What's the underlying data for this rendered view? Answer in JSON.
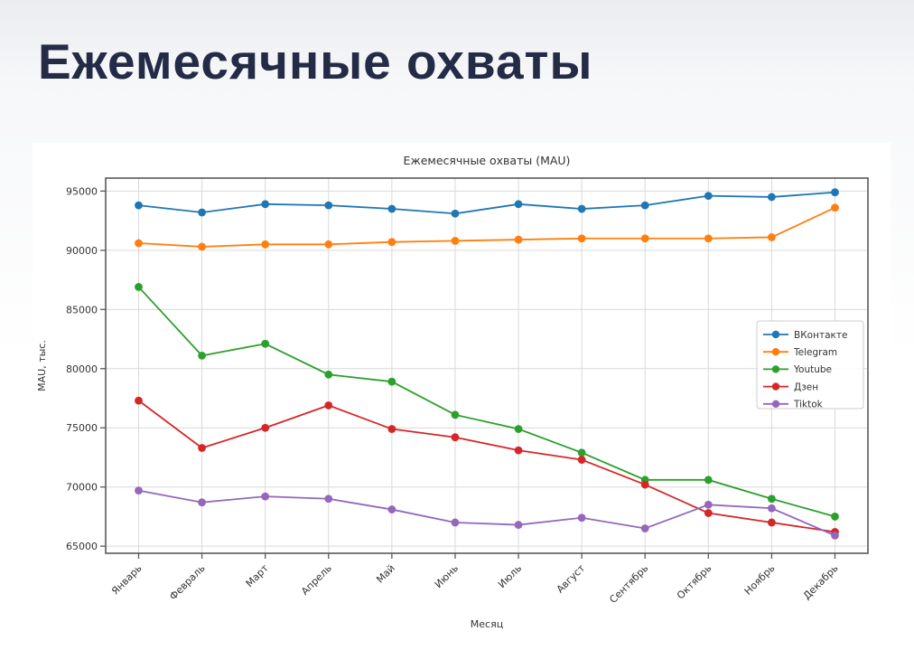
{
  "page": {
    "title": "Ежемесячные охваты",
    "title_color": "#242b47"
  },
  "chart_data": {
    "type": "line",
    "title": "Ежемесячные охваты (MAU)",
    "xlabel": "Месяц",
    "ylabel": "MAU, тыс.",
    "categories": [
      "Январь",
      "Февраль",
      "Март",
      "Апрель",
      "Май",
      "Июнь",
      "Июль",
      "Август",
      "Сентябрь",
      "Октябрь",
      "Ноябрь",
      "Декабрь"
    ],
    "series": [
      {
        "name": "ВКонтакте",
        "color": "#1f77b4",
        "values": [
          93800,
          93200,
          93900,
          93800,
          93500,
          93100,
          93900,
          93500,
          93800,
          94600,
          94500,
          94900
        ]
      },
      {
        "name": "Telegram",
        "color": "#ff7f0e",
        "values": [
          90600,
          90300,
          90500,
          90500,
          90700,
          90800,
          90900,
          91000,
          91000,
          91000,
          91100,
          93600
        ]
      },
      {
        "name": "Youtube",
        "color": "#2ca02c",
        "values": [
          86900,
          81100,
          82100,
          79500,
          78900,
          76100,
          74900,
          72900,
          70600,
          70600,
          69000,
          67500
        ]
      },
      {
        "name": "Дзен",
        "color": "#d62728",
        "values": [
          77300,
          73300,
          75000,
          76900,
          74900,
          74200,
          73100,
          72300,
          70200,
          67800,
          67000,
          66200
        ]
      },
      {
        "name": "Tiktok",
        "color": "#9467bd",
        "values": [
          69700,
          68700,
          69200,
          69000,
          68100,
          67000,
          66800,
          67400,
          66500,
          68500,
          68200,
          65900
        ]
      }
    ],
    "ylim": [
      64400,
      96100
    ],
    "yticks": [
      65000,
      70000,
      75000,
      80000,
      85000,
      90000,
      95000
    ],
    "grid": true,
    "legend_position": "right-middle",
    "styles": {
      "grid_color": "#d9d9d9",
      "frame_color": "#58595b",
      "text_color": "#333333",
      "legend_border": "#cccccc",
      "legend_bg": "#ffffff"
    }
  }
}
